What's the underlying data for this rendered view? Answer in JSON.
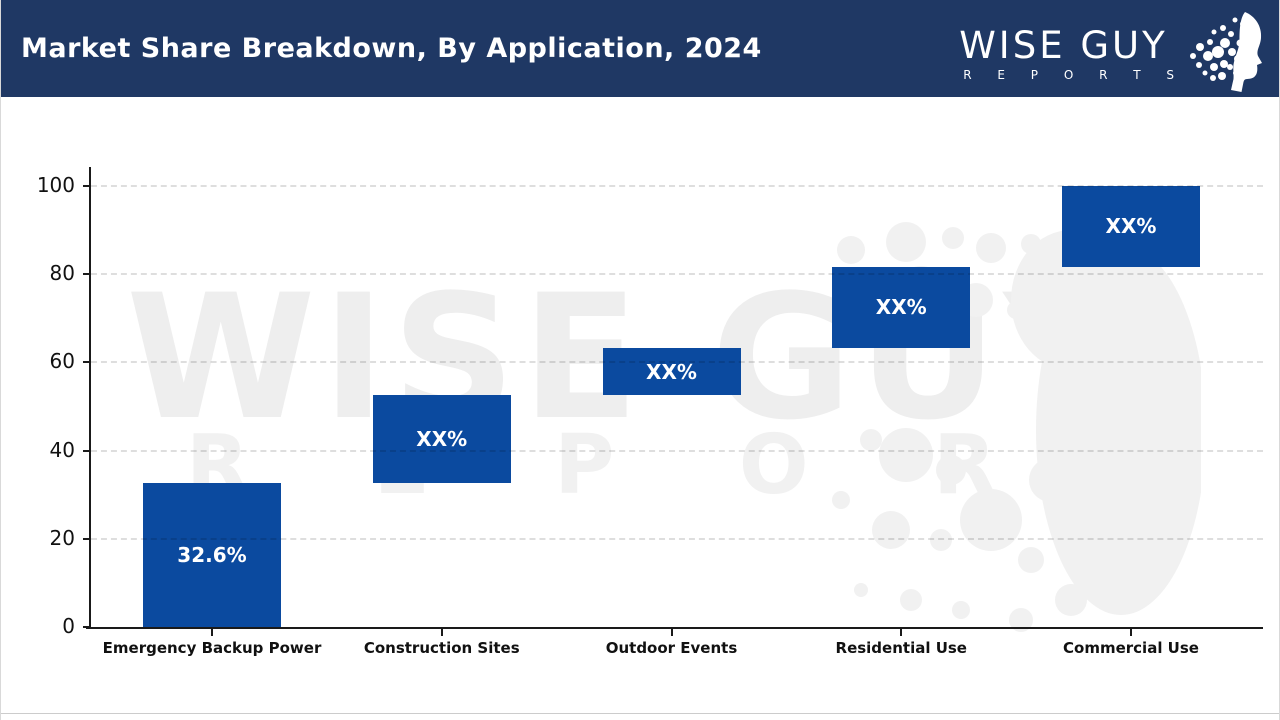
{
  "header": {
    "title": "Market Share Breakdown, By Application, 2024",
    "logo": {
      "name": "WISE GUY",
      "sub": "R E P O R T S"
    }
  },
  "watermark": {
    "line1": "WISE GUY",
    "line2": "R E P O R T S"
  },
  "colors": {
    "header_bg": "#1f3864",
    "bar": "#0b4a9f",
    "bar_label_text": "#ffffff",
    "axis": "#1a1a1a",
    "gridline": "#e3e3e3",
    "watermark": "#eeeeee",
    "bottom_rule": "#cccccc"
  },
  "chart_data": {
    "type": "bar",
    "subtype": "waterfall",
    "title": "Market Share Breakdown, By Application, 2024",
    "xlabel": "",
    "ylabel": "",
    "ylim": [
      0,
      100
    ],
    "yticks": [
      0,
      20,
      40,
      60,
      80,
      100
    ],
    "grid": "horizontal-dashed",
    "legend": "none",
    "categories": [
      "Emergency Backup Power",
      "Construction Sites",
      "Outdoor Events",
      "Residential Use",
      "Commercial Use"
    ],
    "bars": [
      {
        "category": "Emergency Backup Power",
        "start": 0,
        "end": 32.6,
        "label": "32.6%"
      },
      {
        "category": "Construction Sites",
        "start": 32.6,
        "end": 52.6,
        "label": "XX%"
      },
      {
        "category": "Outdoor Events",
        "start": 52.6,
        "end": 63.2,
        "label": "XX%"
      },
      {
        "category": "Residential Use",
        "start": 63.2,
        "end": 81.7,
        "label": "XX%"
      },
      {
        "category": "Commercial Use",
        "start": 81.7,
        "end": 100,
        "label": "XX%"
      }
    ]
  }
}
